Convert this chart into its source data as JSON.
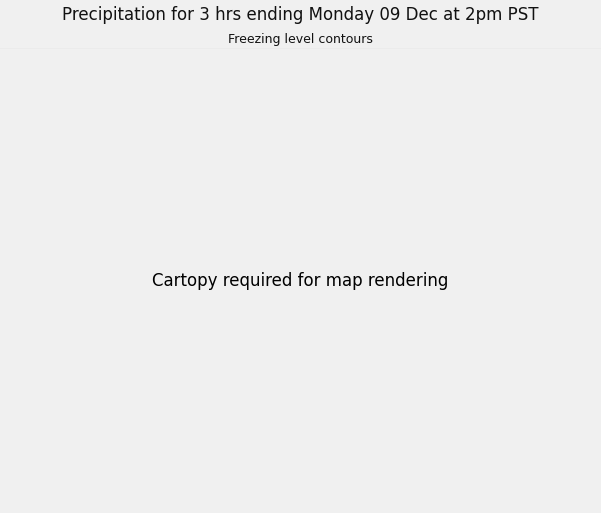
{
  "title": "Precipitation for 3 hrs ending Monday 09 Dec at 2pm PST",
  "subtitle": "Freezing level contours",
  "title_fontsize": 12,
  "subtitle_fontsize": 9,
  "bg_color": "#f0f0f0",
  "ocean_color": "#c5d5e8",
  "land_color_low": "#b0b8a0",
  "land_color_high": "#888888",
  "coast_color": "#1a1a1a",
  "contour_color": "#cc0000",
  "label_bg": "#ffffff",
  "figsize": [
    6.01,
    5.13
  ],
  "dpi": 100,
  "lon_min": 98,
  "lon_max": 130,
  "lat_min": 0,
  "lat_max": 24,
  "contour_lw": 1.2,
  "label_fontsize": 7
}
